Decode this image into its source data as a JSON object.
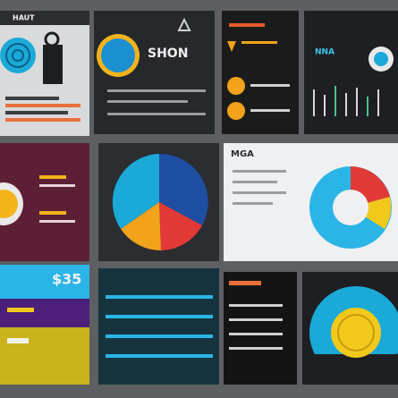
{
  "panels": {
    "top_left": {
      "label": "HAUT"
    },
    "top_middle": {
      "title": "SHON"
    },
    "top_right": {
      "label": "NNA"
    },
    "middle_right": {
      "title": "MGA"
    },
    "bottom_left": {
      "price": "$35"
    }
  }
}
